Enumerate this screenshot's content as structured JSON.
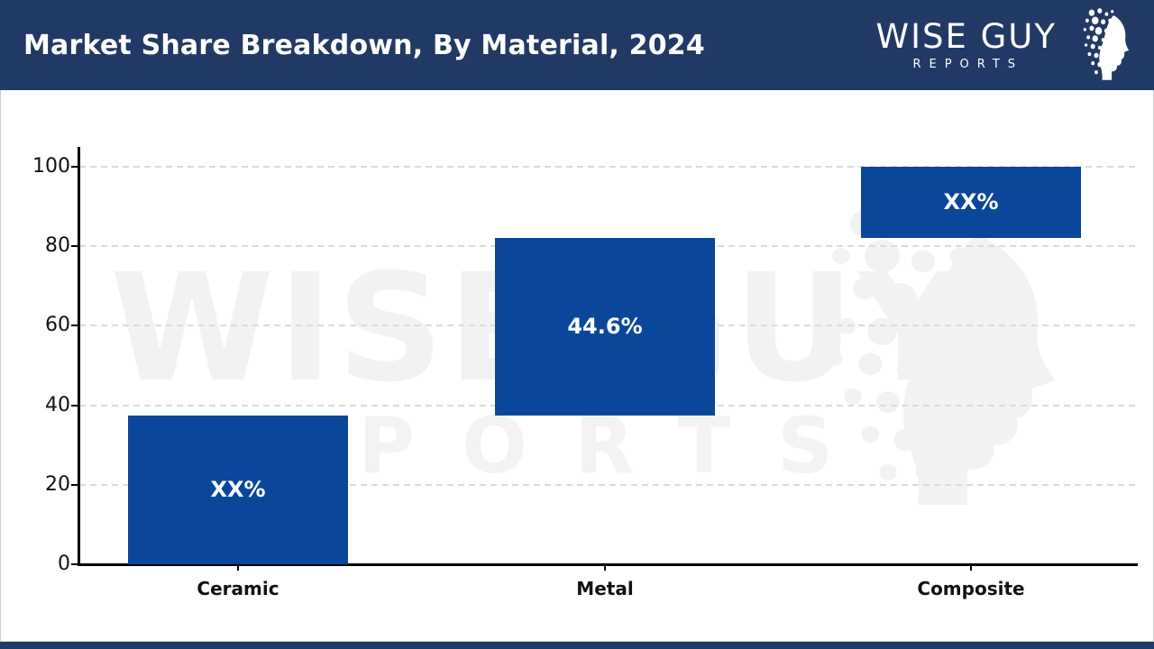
{
  "header": {
    "title": "Market Share Breakdown, By Material, 2024",
    "logo_line1": "WISE GUY",
    "logo_line2": "REPORTS"
  },
  "watermark": {
    "line1": "WISE GUY",
    "line2": "REPORTS"
  },
  "chart_data": {
    "type": "bar",
    "variant": "waterfall-stacked-percent",
    "title": "Market Share Breakdown, By Material, 2024",
    "categories": [
      "Ceramic",
      "Metal",
      "Composite"
    ],
    "series": [
      {
        "name": "Ceramic",
        "start": 0,
        "end": 37.5,
        "label": "XX%"
      },
      {
        "name": "Metal",
        "start": 37.5,
        "end": 82.1,
        "label": "44.6%"
      },
      {
        "name": "Composite",
        "start": 82.1,
        "end": 100,
        "label": "XX%"
      }
    ],
    "ylim": [
      0,
      100
    ],
    "yticks": [
      0,
      20,
      40,
      60,
      80,
      100
    ],
    "grid": "horizontal-dashed",
    "legend": "none",
    "bar_color": "#0A479B",
    "bar_label_color": "#FFFFFF"
  },
  "colors": {
    "header_bg": "#213965",
    "footer_bg": "#213965",
    "bar": "#0A479B",
    "axis": "#000000",
    "gridline": "#DBDBDB",
    "watermark": "#F2F2F2"
  }
}
